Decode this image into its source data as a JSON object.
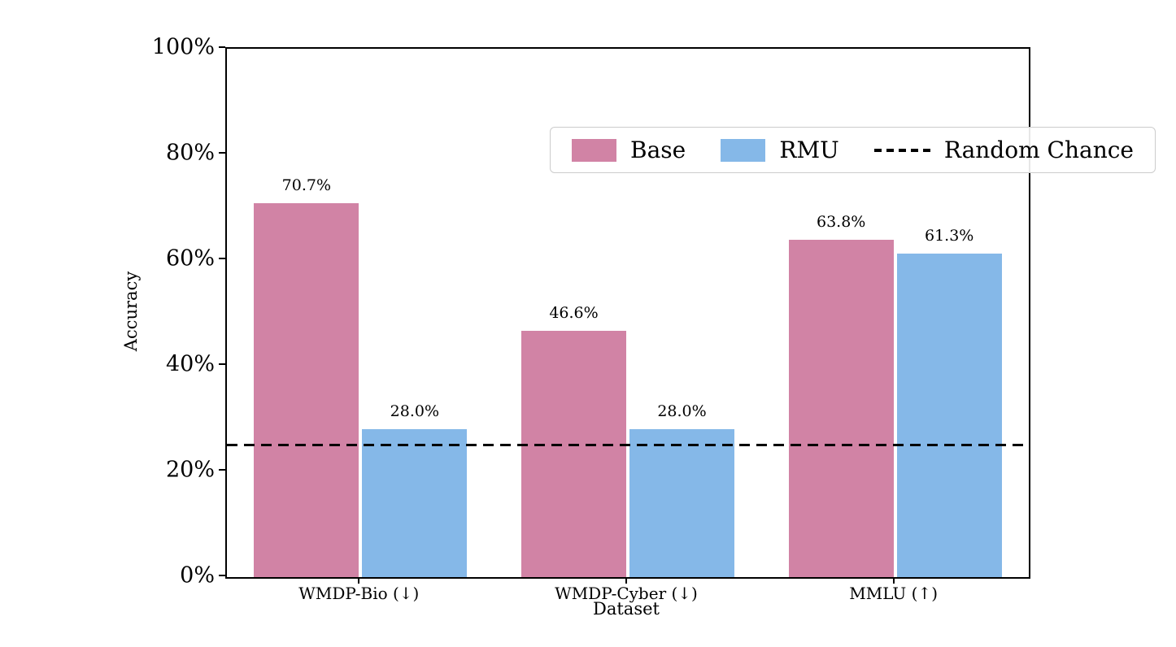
{
  "chart_data": {
    "type": "bar",
    "title": "",
    "xlabel": "Dataset",
    "ylabel": "Accuracy",
    "categories": [
      "WMDP-Bio (↓)",
      "WMDP-Cyber (↓)",
      "MMLU (↑)"
    ],
    "series": [
      {
        "name": "Base",
        "color": "#d183a5",
        "values": [
          70.7,
          46.6,
          63.8
        ],
        "labels": [
          "70.7%",
          "46.6%",
          "63.8%"
        ]
      },
      {
        "name": "RMU",
        "color": "#85b8e8",
        "values": [
          28.0,
          28.0,
          61.3
        ],
        "labels": [
          "28.0%",
          "28.0%",
          "61.3%"
        ]
      }
    ],
    "reference_line": {
      "label": "Random Chance",
      "value": 25,
      "style": "dashed",
      "color": "#000000"
    },
    "y_ticks": [
      {
        "value": 0,
        "label": "0%"
      },
      {
        "value": 20,
        "label": "20%"
      },
      {
        "value": 40,
        "label": "40%"
      },
      {
        "value": 60,
        "label": "60%"
      },
      {
        "value": 80,
        "label": "80%"
      },
      {
        "value": 100,
        "label": "100%"
      }
    ],
    "ylim": [
      0,
      100
    ],
    "grid": false,
    "legend_position": "upper center",
    "colors": {
      "axis": "#000000",
      "text": "#000000",
      "legend_border": "#cccccc",
      "background": "#ffffff"
    }
  }
}
